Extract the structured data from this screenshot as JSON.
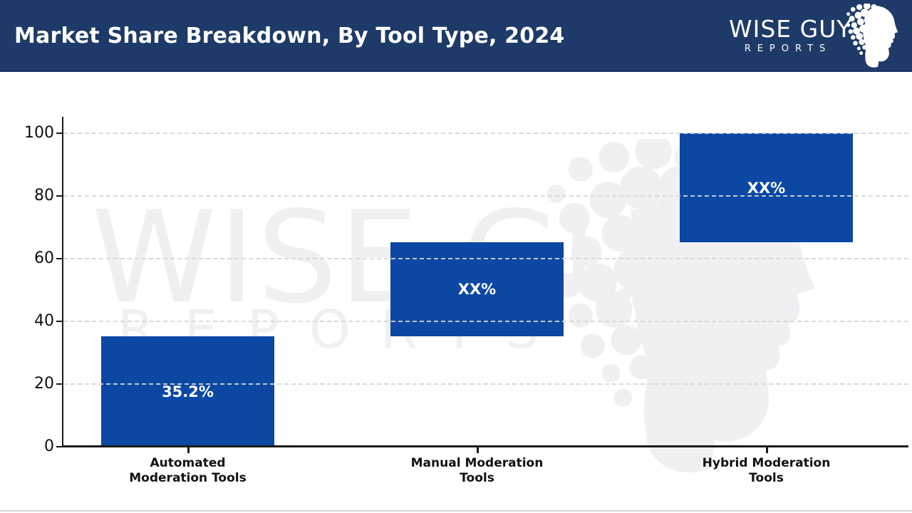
{
  "header": {
    "title": "Market Share Breakdown, By Tool Type, 2024",
    "logo": {
      "brand_line1": "WISE GUY",
      "brand_line2": "REPORTS"
    }
  },
  "watermark": {
    "line1": "WISE GUY",
    "line2": "REPORTS"
  },
  "chart_data": {
    "type": "bar",
    "subtype": "floating-segment-waterfall",
    "title": "Market Share Breakdown, By Tool Type, 2024",
    "categories": [
      "Automated Moderation Tools",
      "Manual Moderation Tools",
      "Hybrid Moderation Tools"
    ],
    "category_lines": [
      [
        "Automated",
        "Moderation Tools"
      ],
      [
        "Manual Moderation",
        "Tools"
      ],
      [
        "Hybrid Moderation",
        "Tools"
      ]
    ],
    "series": [
      {
        "name": "Market share (%)",
        "segments": [
          {
            "category": "Automated Moderation Tools",
            "from": 0,
            "to": 35.2,
            "label": "35.2%"
          },
          {
            "category": "Manual Moderation Tools",
            "from": 35.2,
            "to": 65.2,
            "label": "XX%"
          },
          {
            "category": "Hybrid Moderation Tools",
            "from": 65.2,
            "to": 100,
            "label": "XX%"
          }
        ]
      }
    ],
    "yticks": [
      0,
      20,
      40,
      60,
      80,
      100
    ],
    "ylim": [
      0,
      105
    ],
    "xlabel": "",
    "ylabel": "",
    "grid": "horizontal-dashed",
    "legend": "none",
    "bar_color": "#0c47a3",
    "bar_label_color": "#ffffff"
  },
  "colors": {
    "header_bg": "#1e3a68",
    "bar": "#0c47a3",
    "grid": "#d6d6d6",
    "axis": "#1a1a1a",
    "watermark": "#f0f0f3",
    "bottom_rule": "#d5d5d5"
  }
}
